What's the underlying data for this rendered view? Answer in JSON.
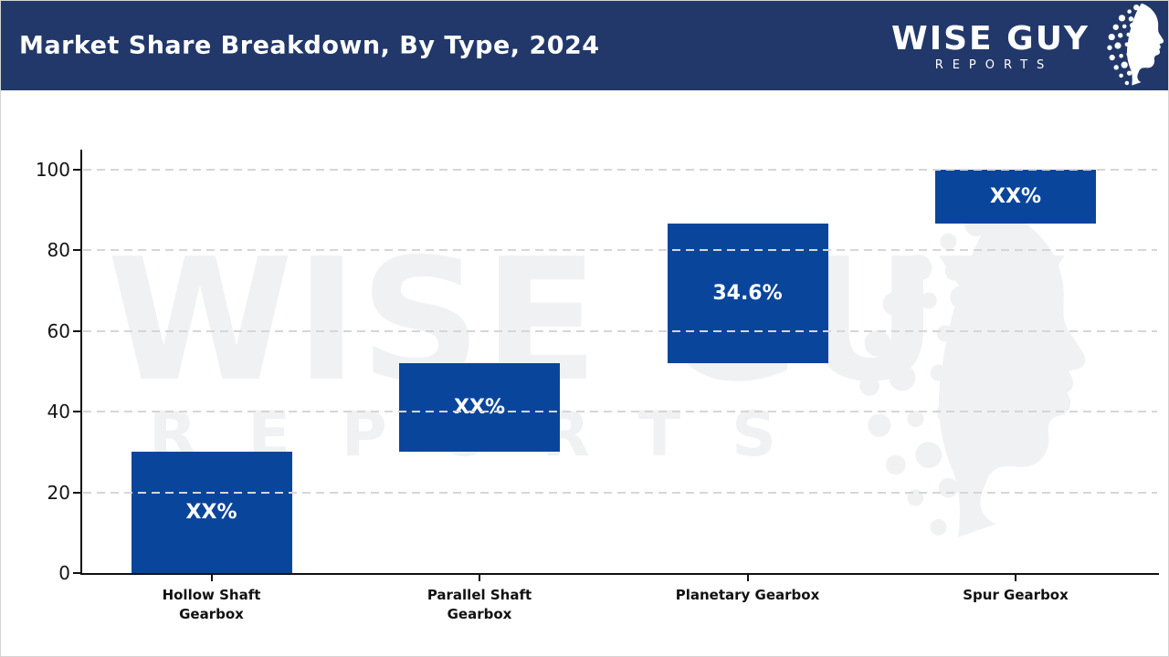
{
  "header": {
    "title": "Market Share Breakdown, By Type, 2024",
    "logo": {
      "line1": "WISE GUY",
      "line2": "REPORTS"
    }
  },
  "watermark": {
    "line1": "WISE GUY",
    "line2": "REPORTS"
  },
  "colors": {
    "header_bg": "#22386a",
    "bar": "#0a459c",
    "gridline": "#d6d6d6",
    "axis": "#111111",
    "watermark": "#f0f1f3",
    "bar_label_text": "#ffffff"
  },
  "chart_data": {
    "type": "bar",
    "subtype": "floating-waterfall",
    "title": "Market Share Breakdown, By Type, 2024",
    "xlabel": "",
    "ylabel": "",
    "ylim": [
      0,
      100
    ],
    "yticks": [
      0,
      20,
      40,
      60,
      80,
      100
    ],
    "grid": "horizontal-dashed",
    "legend": "none",
    "bar_color": "#0a459c",
    "bars": [
      {
        "category": "Hollow Shaft Gearbox",
        "category_lines": [
          "Hollow Shaft",
          "Gearbox"
        ],
        "start": 0,
        "end": 30,
        "value": 30,
        "label": "XX%"
      },
      {
        "category": "Parallel Shaft Gearbox",
        "category_lines": [
          "Parallel Shaft",
          "Gearbox"
        ],
        "start": 30,
        "end": 52,
        "value": 22,
        "label": "XX%"
      },
      {
        "category": "Planetary Gearbox",
        "category_lines": [
          "Planetary Gearbox"
        ],
        "start": 52,
        "end": 86.6,
        "value": 34.6,
        "label": "34.6%"
      },
      {
        "category": "Spur Gearbox",
        "category_lines": [
          "Spur Gearbox"
        ],
        "start": 86.6,
        "end": 100,
        "value": 13.4,
        "label": "XX%"
      }
    ]
  }
}
